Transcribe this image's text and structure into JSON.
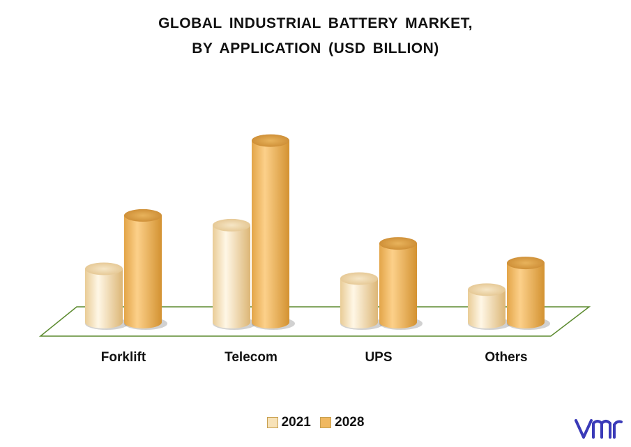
{
  "chart_data": {
    "type": "bar",
    "title_line1": "GLOBAL INDUSTRIAL BATTERY MARKET,",
    "title_line2": "BY APPLICATION (USD BILLION)",
    "categories": [
      "Forklift",
      "Telecom",
      "UPS",
      "Others"
    ],
    "series": [
      {
        "name": "2021",
        "color": "#f7e2b8",
        "values": [
          8.2,
          14.9,
          6.7,
          5.0
        ]
      },
      {
        "name": "2028",
        "color": "#f0b860",
        "values": [
          16.4,
          27.9,
          12.1,
          9.1
        ]
      }
    ],
    "ylim": [
      0,
      30
    ],
    "grid": false,
    "legend_position": "bottom"
  },
  "brand": {
    "logo_icon": "vmr-logo",
    "color": "#3a3ab8"
  }
}
